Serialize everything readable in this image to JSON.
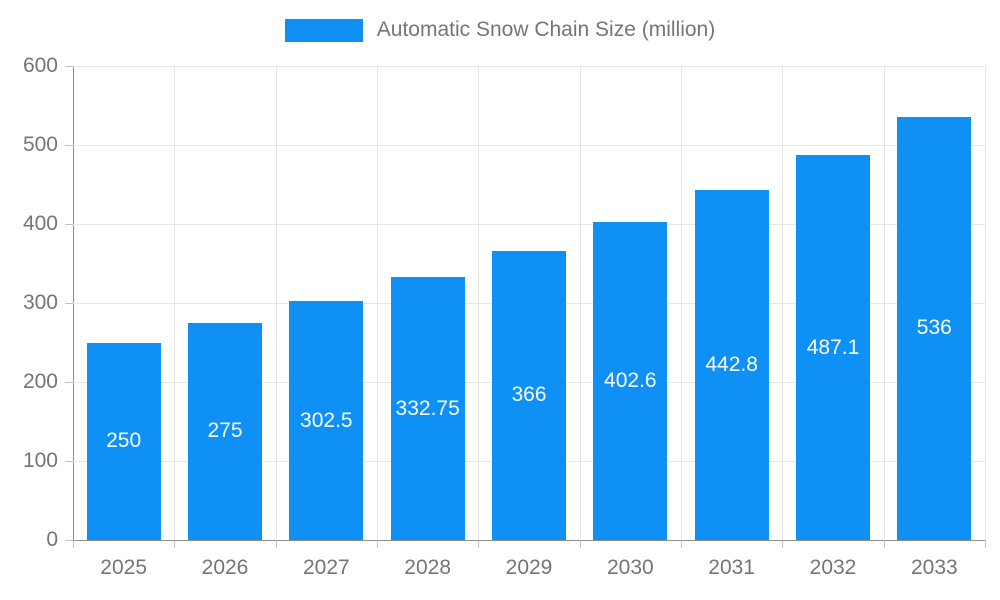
{
  "chart_data": {
    "type": "bar",
    "title": "Automatic Snow Chain Size (million)",
    "legend": [
      "Automatic Snow Chain Size (million)"
    ],
    "legend_position": "top",
    "categories": [
      "2025",
      "2026",
      "2027",
      "2028",
      "2029",
      "2030",
      "2031",
      "2032",
      "2033"
    ],
    "series": [
      {
        "name": "Automatic Snow Chain Size (million)",
        "values": [
          250,
          275,
          302.5,
          332.75,
          366,
          402.6,
          442.8,
          487.1,
          536
        ]
      }
    ],
    "xlabel": "",
    "ylabel": "",
    "ylim": [
      0,
      600
    ],
    "yticks": [
      0,
      100,
      200,
      300,
      400,
      500,
      600
    ],
    "grid": true,
    "value_labels_shown": true,
    "colors": {
      "bar": "#0e90f5",
      "value_label": "#ffffff",
      "axis_text": "#757575",
      "grid_line": "#e6e6e6",
      "axis_line": "#8f8f8f",
      "tick_mark": "#c2c2c2",
      "background": "#ffffff"
    }
  }
}
